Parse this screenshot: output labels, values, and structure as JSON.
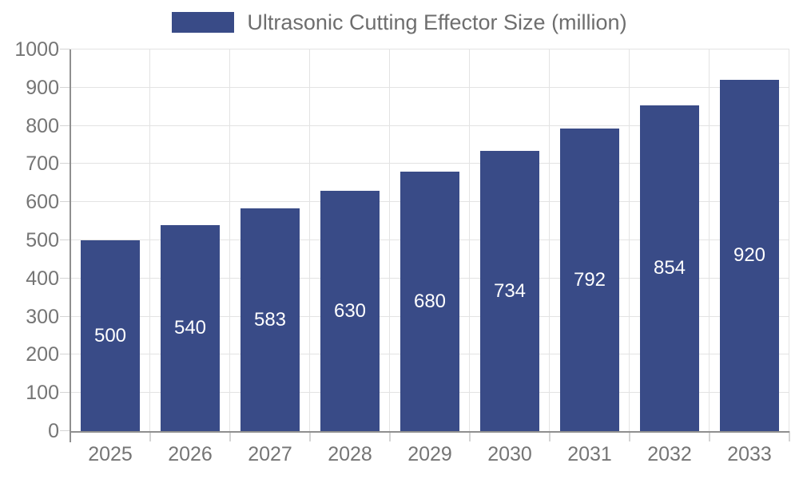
{
  "chart_data": {
    "type": "bar",
    "title": "Ultrasonic Cutting Effector Size (million)",
    "categories": [
      "2025",
      "2026",
      "2027",
      "2028",
      "2029",
      "2030",
      "2031",
      "2032",
      "2033"
    ],
    "values": [
      500,
      540,
      583,
      630,
      680,
      734,
      792,
      854,
      920
    ],
    "xlabel": "",
    "ylabel": "",
    "ylim": [
      0,
      1000
    ],
    "yticks": [
      0,
      100,
      200,
      300,
      400,
      500,
      600,
      700,
      800,
      900,
      1000
    ],
    "grid": true,
    "legend_position": "top",
    "value_labels_inside_bars": true,
    "colors": {
      "bar": "#394B87",
      "grid": "#e3e3e3",
      "axis_line": "#8f8f8f",
      "tick_mark": "#d4d4d4",
      "tick_label": "#757575",
      "legend_text": "#6e6e6e",
      "value_label": "#ffffff",
      "background": "#ffffff"
    }
  }
}
